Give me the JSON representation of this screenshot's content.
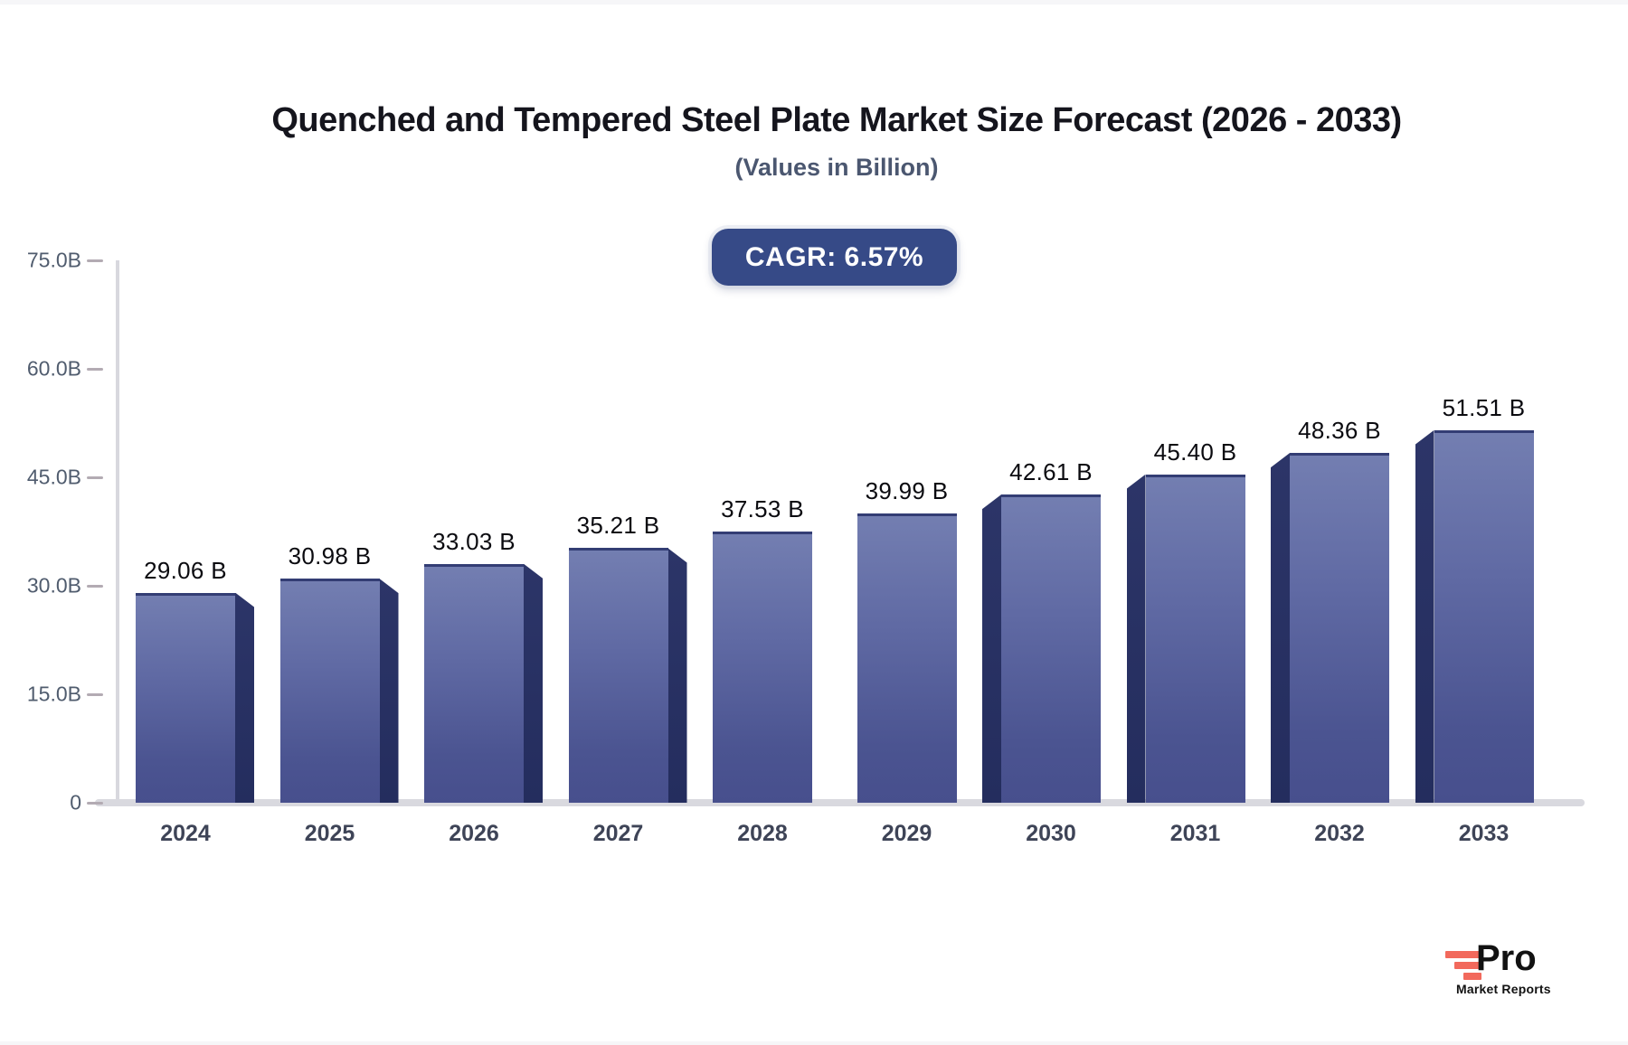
{
  "chart_data": {
    "type": "bar",
    "title": "Quenched and Tempered Steel Plate Market Size Forecast (2026 - 2033)",
    "subtitle": "(Values in Billion)",
    "cagr_label": "CAGR: 6.57%",
    "categories": [
      "2024",
      "2025",
      "2026",
      "2027",
      "2028",
      "2029",
      "2030",
      "2031",
      "2032",
      "2033"
    ],
    "values": [
      29.06,
      30.98,
      33.03,
      35.21,
      37.53,
      39.99,
      42.61,
      45.4,
      48.36,
      51.51
    ],
    "value_labels": [
      "29.06 B",
      "30.98 B",
      "33.03 B",
      "35.21 B",
      "37.53 B",
      "39.99 B",
      "42.61 B",
      "45.40 B",
      "48.36 B",
      "51.51 B"
    ],
    "bar_3d_side": [
      "right",
      "right",
      "right",
      "right",
      "none",
      "none",
      "left",
      "left",
      "left",
      "left"
    ],
    "y_ticks": [
      {
        "label": "75.0B",
        "value": 75
      },
      {
        "label": "60.0B",
        "value": 60
      },
      {
        "label": "45.0B",
        "value": 45
      },
      {
        "label": "30.0B",
        "value": 30
      },
      {
        "label": "15.0B",
        "value": 15
      },
      {
        "label": "0",
        "value": 0
      }
    ],
    "ylim": [
      0,
      75
    ],
    "xlabel": "",
    "ylabel": "",
    "legend": "none",
    "grid": "off",
    "colors": {
      "bar_face_top": "#737eb1",
      "bar_face_bottom": "#474f8d",
      "bar_side": "#273065",
      "badge_background": "#364a87",
      "badge_text": "#ffffff",
      "axis_gray": "#d9d9df",
      "tick_dash": "#b3abb3",
      "title_text": "#15151d",
      "subtitle_text": "#4b5770",
      "year_label": "#3e4457",
      "value_label": "#0b0b10"
    }
  },
  "logo": {
    "name": "Pro",
    "tagline": "Market Reports",
    "accent": "#f2695c"
  }
}
